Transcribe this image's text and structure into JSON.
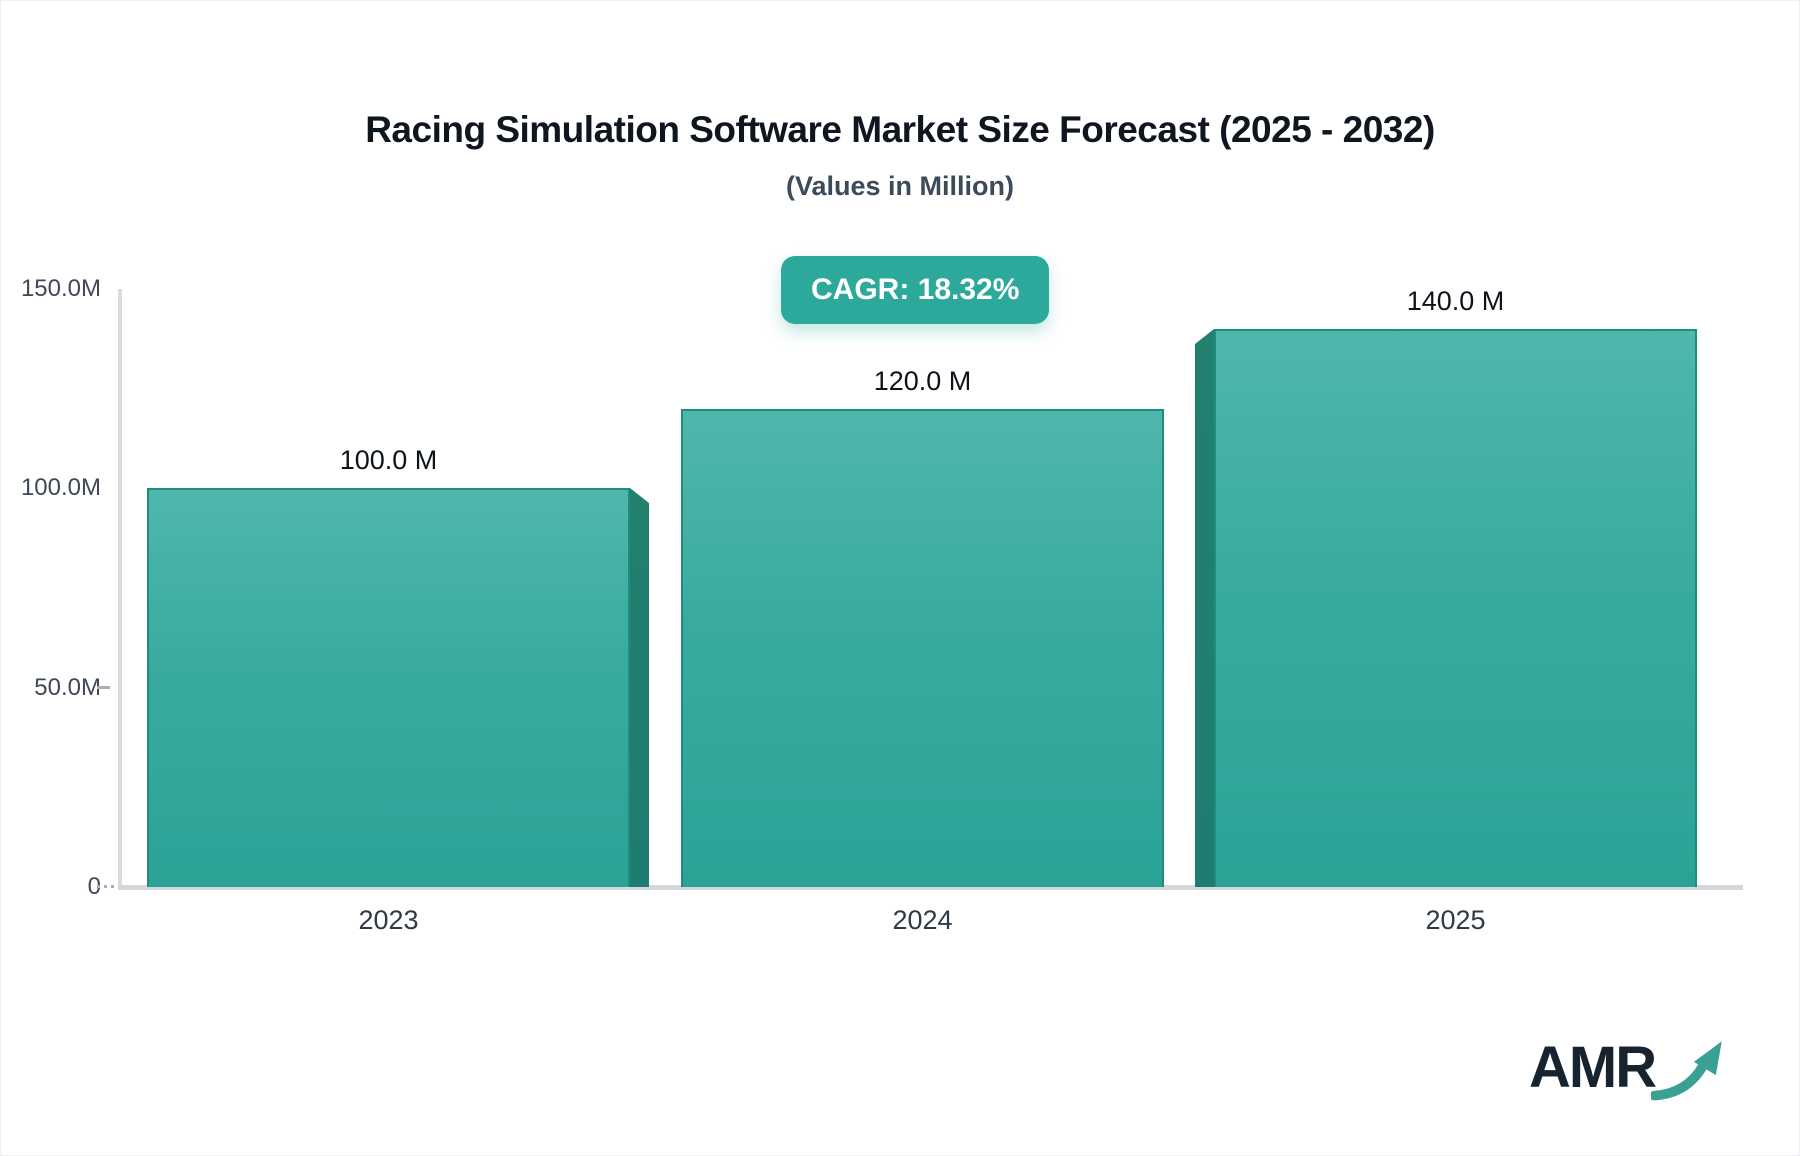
{
  "header": {
    "title": "Racing Simulation Software Market Size Forecast (2025 - 2032)",
    "subtitle": "(Values in Million)"
  },
  "badge": {
    "label": "CAGR: 18.32%",
    "bg_color": "#2CA99B",
    "text_color": "#FFFFFF"
  },
  "chart_data": {
    "type": "bar",
    "title": "Racing Simulation Software Market Size Forecast (2025 - 2032)",
    "subtitle": "(Values in Million)",
    "unit": "Million",
    "cagr": "18.32%",
    "categories": [
      "2023",
      "2024",
      "2025"
    ],
    "values": [
      100.0,
      120.0,
      140.0
    ],
    "value_labels": [
      "100.0 M",
      "120.0 M",
      "140.0 M"
    ],
    "ylim": [
      0,
      150
    ],
    "yticks": [
      {
        "label": "150.0M",
        "value": 150
      },
      {
        "label": "100.0M",
        "value": 100
      },
      {
        "label": "50.0M",
        "value": 50
      },
      {
        "label": "0",
        "value": 0
      }
    ],
    "grid": false,
    "legend": "none",
    "bar_color": "#35A99C",
    "bar_side_color": "#1F7C70",
    "style": "3d-beveled-bars"
  },
  "logo": {
    "text": "AMR",
    "icon": "growth-arrow-icon",
    "text_color": "#172430",
    "arrow_color": "#3AA093"
  }
}
